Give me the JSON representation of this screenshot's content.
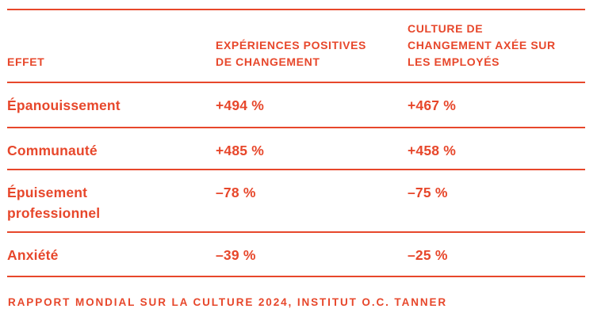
{
  "accent_color": "#E7472B",
  "table": {
    "header": {
      "effect": "EFFET",
      "positive_change": "EXPÉRIENCES POSITIVES\nDE CHANGEMENT",
      "employee_centered": "CULTURE DE\nCHANGEMENT AXÉE SUR\nLES EMPLOYÉS"
    },
    "rows": [
      {
        "effect": "Épanouissement",
        "positive_change": "+494 %",
        "employee_centered": "+467 %"
      },
      {
        "effect": "Communauté",
        "positive_change": "+485 %",
        "employee_centered": "+458 %"
      },
      {
        "effect": "Épuisement\nprofessionnel",
        "positive_change": "–78 %",
        "employee_centered": "–75 %"
      },
      {
        "effect": "Anxiété",
        "positive_change": "–39 %",
        "employee_centered": "–25 %"
      }
    ]
  },
  "footer": {
    "source": "RAPPORT MONDIAL SUR LA CULTURE 2024, INSTITUT O.C. TANNER"
  },
  "chart_data": {
    "type": "table",
    "title": "",
    "columns": [
      "EFFET",
      "EXPÉRIENCES POSITIVES DE CHANGEMENT",
      "CULTURE DE CHANGEMENT AXÉE SUR LES EMPLOYÉS"
    ],
    "categories": [
      "Épanouissement",
      "Communauté",
      "Épuisement professionnel",
      "Anxiété"
    ],
    "series": [
      {
        "name": "Expériences positives de changement",
        "values": [
          494,
          485,
          -78,
          -39
        ],
        "unit": "%"
      },
      {
        "name": "Culture de changement axée sur les employés",
        "values": [
          467,
          458,
          -75,
          -25
        ],
        "unit": "%"
      }
    ],
    "source": "RAPPORT MONDIAL SUR LA CULTURE 2024, INSTITUT O.C. TANNER"
  }
}
